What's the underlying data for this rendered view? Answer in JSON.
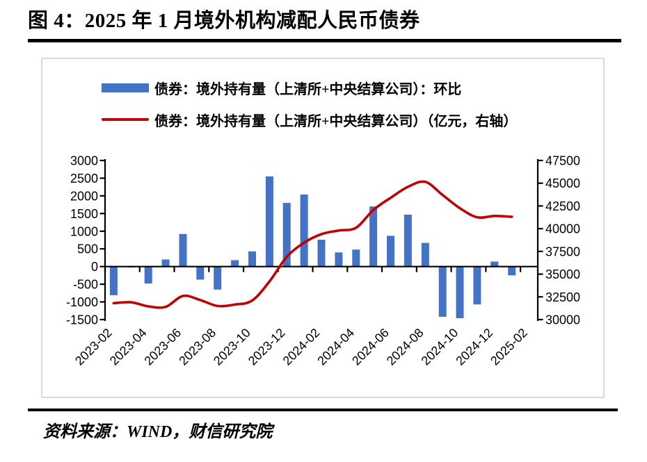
{
  "figure": {
    "title": "图 4：2025 年 1 月境外机构减配人民币债券"
  },
  "legend": {
    "bar": "债券：境外持有量（上清所+中央结算公司）：环比",
    "line": "债券：境外持有量（上清所+中央结算公司）（亿元，右轴）"
  },
  "source": {
    "text": "资料来源：WIND，财信研究院"
  },
  "colors": {
    "bar": "#4472C4",
    "line": "#C00000",
    "axis": "#000000",
    "box_border": "#DBDBDB"
  },
  "chart_data": {
    "type": "combo_bar_line",
    "title": "图 4：2025 年 1 月境外机构减配人民币债券",
    "categories": [
      "2023-02",
      "2023-03",
      "2023-04",
      "2023-05",
      "2023-06",
      "2023-07",
      "2023-08",
      "2023-09",
      "2023-10",
      "2023-11",
      "2023-12",
      "2024-01",
      "2024-02",
      "2024-03",
      "2024-04",
      "2024-05",
      "2024-06",
      "2024-07",
      "2024-08",
      "2024-09",
      "2024-10",
      "2024-11",
      "2024-12",
      "2025-01"
    ],
    "x_tick_labels": [
      "2023-02",
      "2023-04",
      "2023-06",
      "2023-08",
      "2023-10",
      "2023-12",
      "2024-02",
      "2024-04",
      "2024-06",
      "2024-08",
      "2024-10",
      "2024-12",
      "2025-02"
    ],
    "series": [
      {
        "name": "债券：境外持有量（上清所+中央结算公司）：环比",
        "type": "bar",
        "axis": "left",
        "color": "#4472C4",
        "values": [
          -810,
          -25,
          -480,
          200,
          920,
          -370,
          -650,
          180,
          430,
          2550,
          1800,
          2040,
          760,
          400,
          480,
          1700,
          870,
          1470,
          670,
          -1420,
          -1460,
          -1070,
          140,
          -250
        ]
      },
      {
        "name": "债券：境外持有量（上清所+中央结算公司）（亿元，右轴）",
        "type": "line",
        "axis": "right",
        "color": "#C00000",
        "values": [
          31800,
          31900,
          31450,
          31400,
          32600,
          32150,
          31500,
          31650,
          32100,
          34200,
          36900,
          38450,
          39400,
          39800,
          40100,
          42050,
          43400,
          44600,
          45150,
          43700,
          42250,
          41250,
          41400,
          41300
        ]
      }
    ],
    "left_axis": {
      "min": -1500,
      "max": 3000,
      "step": 500
    },
    "right_axis": {
      "min": 30000,
      "max": 47500,
      "step": 2500
    },
    "grid": false,
    "legend_position": "top"
  }
}
